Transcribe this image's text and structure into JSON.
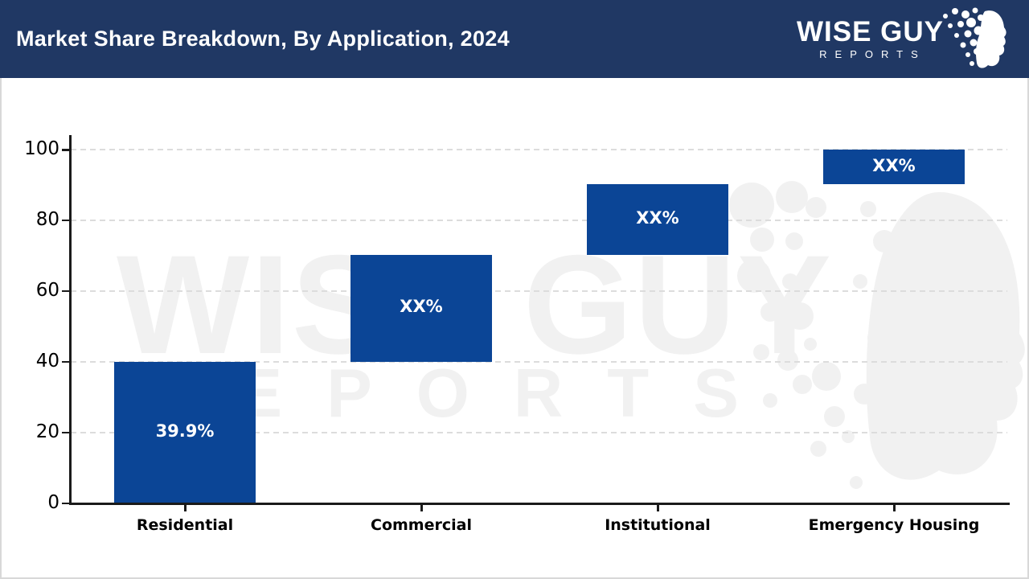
{
  "header": {
    "title": "Market Share Breakdown, By Application, 2024",
    "logo": {
      "line1": "WISE GUY",
      "line2": "REPORTS",
      "icon": "face-dots-icon"
    }
  },
  "watermark": {
    "line1": "WISE GUY",
    "line2": "REPORTS"
  },
  "chart_data": {
    "type": "bar",
    "subtype": "waterfall",
    "title": "Market Share Breakdown, By Application, 2024",
    "categories": [
      "Residential",
      "Commercial",
      "Institutional",
      "Emergency Housing"
    ],
    "segments": [
      {
        "category": "Residential",
        "start": 0,
        "end": 39.9,
        "label": "39.9%"
      },
      {
        "category": "Commercial",
        "start": 39.9,
        "end": 70.3,
        "label": "XX%"
      },
      {
        "category": "Institutional",
        "start": 70.3,
        "end": 90.2,
        "label": "XX%"
      },
      {
        "category": "Emergency Housing",
        "start": 90.2,
        "end": 100,
        "label": "XX%"
      }
    ],
    "values_masked_as": "XX%",
    "yticks": [
      0,
      20,
      40,
      60,
      80,
      100
    ],
    "ylim": [
      0,
      104
    ],
    "xlabel": "",
    "ylabel": "",
    "legend": "none",
    "grid": "horizontal-dashed",
    "bar_color": "#0b4596",
    "axis_color": "#1a1a1a",
    "grid_color": "#dcdcdc",
    "header_color": "#203864"
  }
}
